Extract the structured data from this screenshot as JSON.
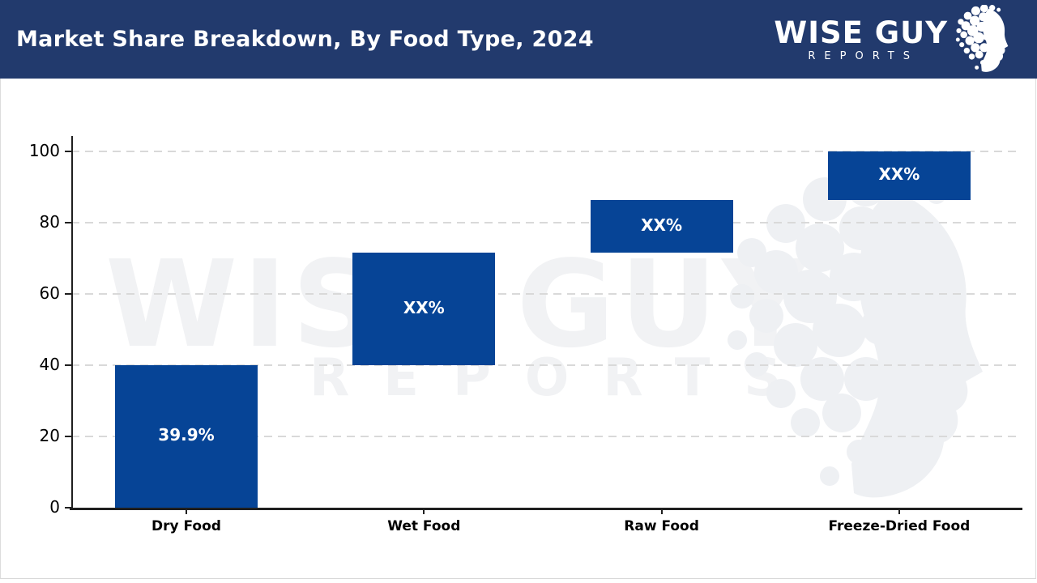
{
  "header": {
    "title": "Market Share Breakdown, By Food Type, 2024",
    "bg_color": "#223A6D",
    "logo": {
      "line1": "WISE GUY",
      "line2": "REPORTS"
    }
  },
  "watermark": {
    "line1": "WISE GUY",
    "line2": "REPORTS"
  },
  "chart_data": {
    "type": "bar",
    "subtype": "floating-waterfall",
    "title": "Market Share Breakdown, By Food Type, 2024",
    "categories": [
      "Dry Food",
      "Wet Food",
      "Raw Food",
      "Freeze-Dried Food"
    ],
    "segments": [
      {
        "category": "Dry Food",
        "from": 0,
        "to": 39.9,
        "label": "39.9%"
      },
      {
        "category": "Wet Food",
        "from": 40,
        "to": 71.5,
        "label": "XX%"
      },
      {
        "category": "Raw Food",
        "from": 71.5,
        "to": 86.3,
        "label": "XX%"
      },
      {
        "category": "Freeze-Dried Food",
        "from": 86.3,
        "to": 100,
        "label": "XX%"
      }
    ],
    "xlabel": "",
    "ylabel": "",
    "ylim": [
      0,
      100
    ],
    "yticks": [
      0,
      20,
      40,
      60,
      80,
      100
    ],
    "grid": "horizontal-dashed",
    "legend": "none",
    "bar_color": "#064496",
    "bar_label_color": "#ffffff",
    "axis_color": "#1f1f1f",
    "gridline_color": "#d9d9d9"
  }
}
